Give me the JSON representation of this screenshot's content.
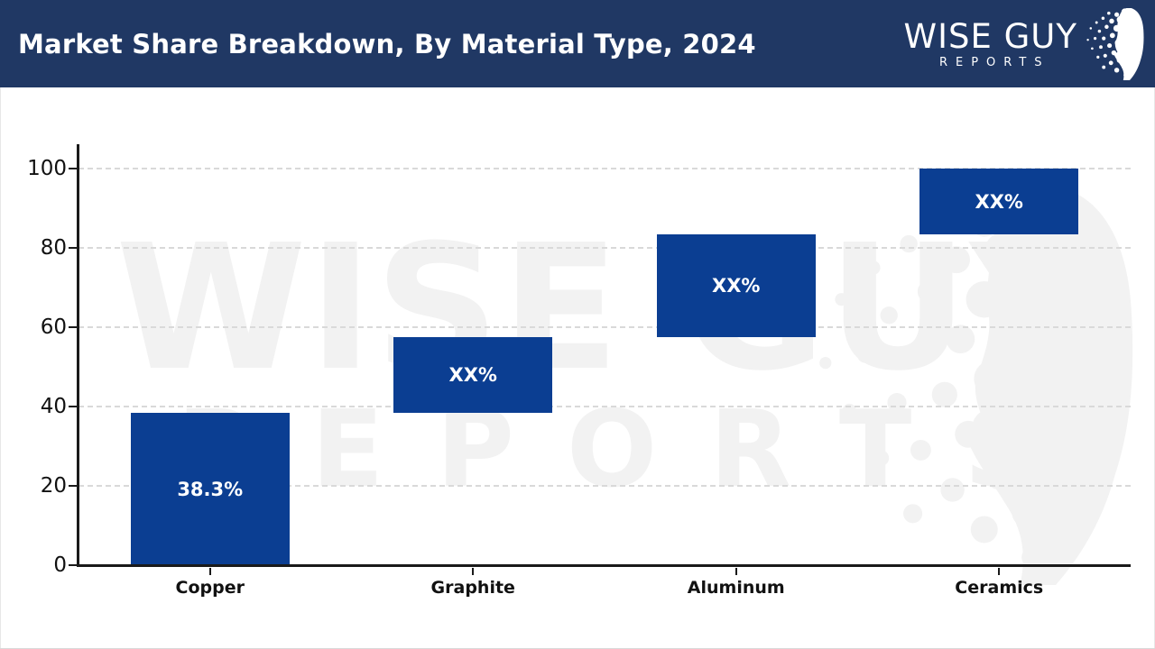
{
  "header": {
    "title": "Market Share Breakdown, By Material Type, 2024",
    "logo": {
      "line1": "WISE GUY",
      "line2": "REPORTS"
    }
  },
  "watermark": {
    "line1": "WISE GUY",
    "line2": "REPORTS"
  },
  "colors": {
    "header_bg": "#203864",
    "bar": "#0b3e92",
    "axis": "#1a1a1a",
    "grid": "#d9d9d9",
    "watermark": "#f2f2f2"
  },
  "chart_data": {
    "type": "bar",
    "subtype": "waterfall",
    "title": "Market Share Breakdown, By Material Type, 2024",
    "xlabel": "",
    "ylabel": "",
    "categories": [
      "Copper",
      "Graphite",
      "Aluminum",
      "Ceramics"
    ],
    "segments": [
      {
        "category": "Copper",
        "start": 0,
        "end": 38.3,
        "label": "38.3%"
      },
      {
        "category": "Graphite",
        "start": 38.3,
        "end": 57.6,
        "label": "XX%"
      },
      {
        "category": "Aluminum",
        "start": 57.6,
        "end": 83.3,
        "label": "XX%"
      },
      {
        "category": "Ceramics",
        "start": 83.3,
        "end": 100,
        "label": "XX%"
      }
    ],
    "yticks": [
      0,
      20,
      40,
      60,
      80,
      100
    ],
    "ylim": [
      0,
      105
    ],
    "grid": "horizontal-dashed",
    "legend": "none",
    "bar_color": "#0b3e92",
    "bar_label_color": "#ffffff"
  }
}
